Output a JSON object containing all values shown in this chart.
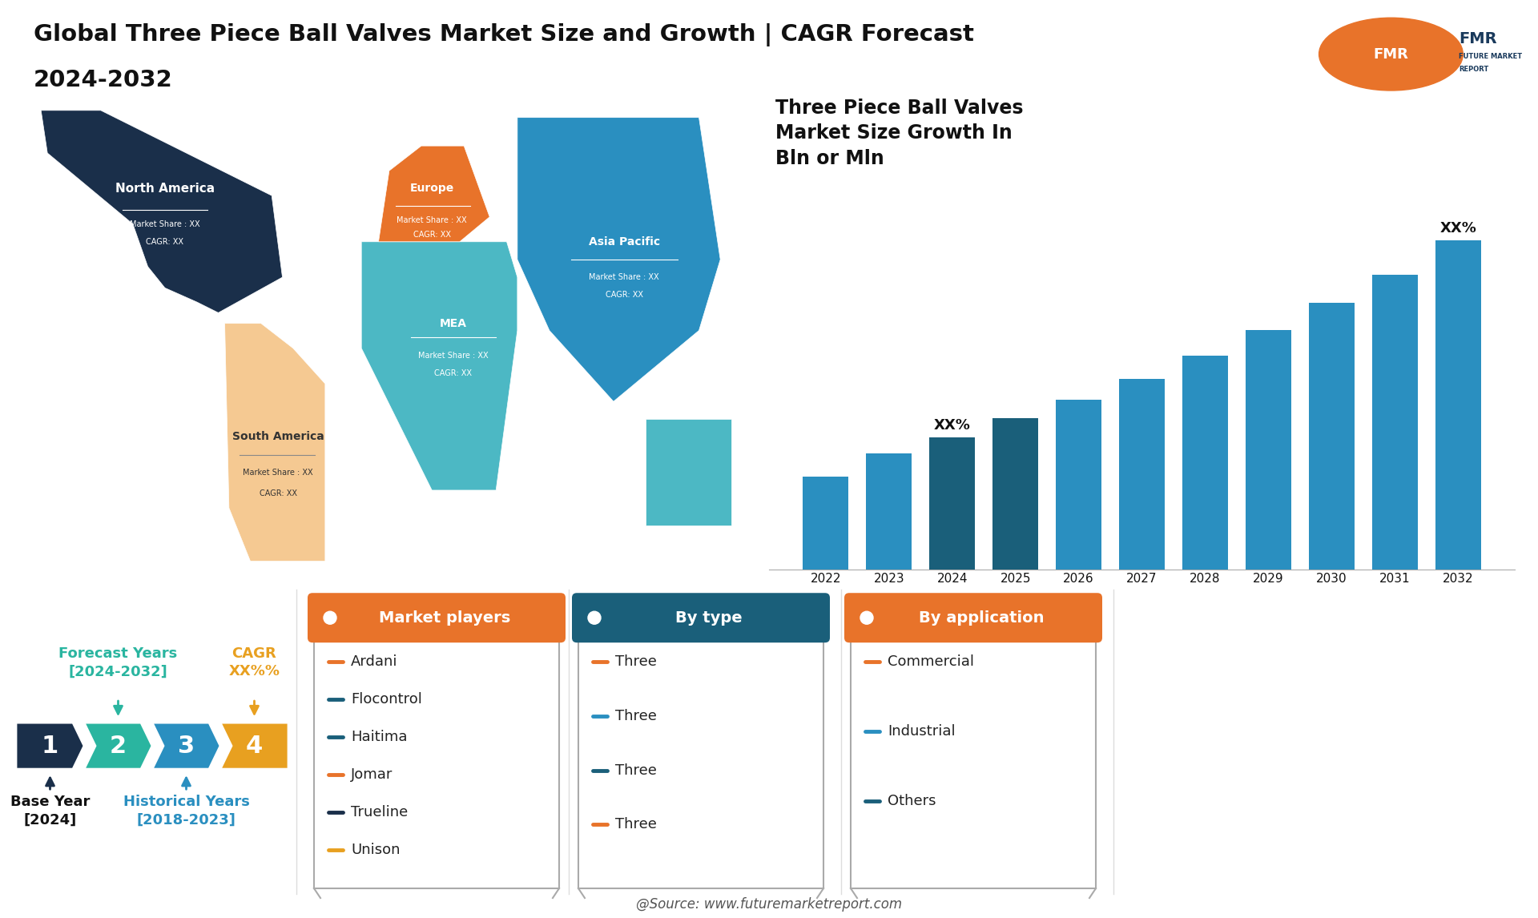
{
  "title_line1": "Global Three Piece Ball Valves Market Size and Growth | CAGR Forecast",
  "title_line2": "2024-2032",
  "title_fontsize": 21,
  "background_color": "#ffffff",
  "chart_title": "Three Piece Ball Valves\nMarket Size Growth In\nBln or Mln",
  "chart_title_fontsize": 17,
  "bar_years": [
    "2022",
    "2023",
    "2024",
    "2025",
    "2026",
    "2027",
    "2028",
    "2029",
    "2030",
    "2031",
    "2032"
  ],
  "bar_values": [
    2.0,
    2.5,
    2.85,
    3.25,
    3.65,
    4.1,
    4.6,
    5.15,
    5.75,
    6.35,
    7.1
  ],
  "bar_color": "#2a8fc0",
  "bar_dark_indices": [
    2,
    3
  ],
  "bar_dark_color": "#1a5f7a",
  "xx_label_indices": [
    2,
    10
  ],
  "xx_labels": [
    "XX%",
    "XX%"
  ],
  "timeline_labels": [
    "1",
    "2",
    "3",
    "4"
  ],
  "timeline_colors": [
    "#1a2f4a",
    "#2ab5a0",
    "#2a8fc0",
    "#e8a020"
  ],
  "forecast_label": "Forecast Years\n[2024-2032]",
  "forecast_color": "#2ab5a0",
  "historical_label": "Historical Years\n[2018-2023]",
  "historical_color": "#2a8fc0",
  "base_year_label": "Base Year\n[2024]",
  "cagr_label": "CAGR\nXX%%",
  "cagr_color": "#e8a020",
  "category1_title": "Market players",
  "category1_color": "#e8732a",
  "category1_items": [
    "Ardani",
    "Flocontrol",
    "Haitima",
    "Jomar",
    "Trueline",
    "Unison"
  ],
  "category1_item_colors": [
    "#e8732a",
    "#1a5f7a",
    "#1a5f7a",
    "#e8732a",
    "#1a2f4a",
    "#e8a020"
  ],
  "category2_title": "By type",
  "category2_color": "#1a5f7a",
  "category2_items": [
    "Three",
    "Three",
    "Three",
    "Three"
  ],
  "category2_item_colors": [
    "#e8732a",
    "#2a8fc0",
    "#1a5f7a",
    "#e8732a"
  ],
  "category3_title": "By application",
  "category3_color": "#e8732a",
  "category3_items": [
    "Commercial",
    "Industrial",
    "Others"
  ],
  "category3_item_colors": [
    "#e8732a",
    "#2a8fc0",
    "#1a5f7a"
  ],
  "source_text": "@Source: www.futuremarketreport.com",
  "na_color": "#1a2f4a",
  "sa_color": "#f5c992",
  "eu_color": "#e8732a",
  "mea_color": "#4cb8c4",
  "ap_color": "#2a8fc0",
  "aus_color": "#4cb8c4"
}
